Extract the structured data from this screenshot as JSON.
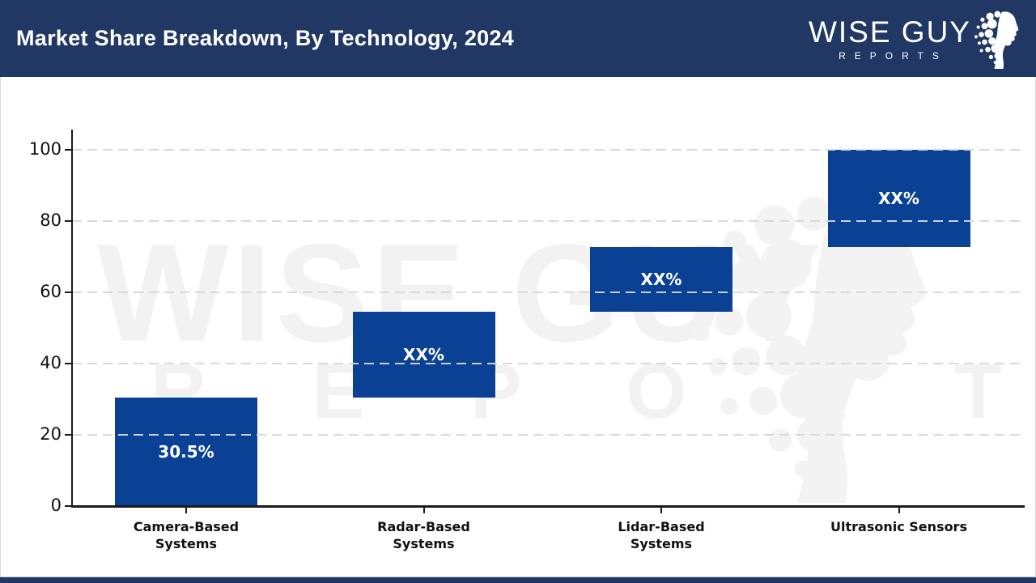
{
  "header": {
    "title": "Market Share Breakdown, By Technology, 2024",
    "logo": {
      "line1": "WISE GUY",
      "line2": "REPORTS"
    }
  },
  "watermark": {
    "line1": "WISE GUY",
    "line2": "R E P O R T S"
  },
  "chart_data": {
    "type": "bar",
    "subtype": "waterfall (floating stacked segments)",
    "title": "Market Share Breakdown, By Technology, 2024",
    "categories": [
      "Camera-Based Systems",
      "Radar-Based Systems",
      "Lidar-Based Systems",
      "Ultrasonic Sensors"
    ],
    "category_lines": [
      [
        "Camera-Based",
        "Systems"
      ],
      [
        "Radar-Based",
        "Systems"
      ],
      [
        "Lidar-Based",
        "Systems"
      ],
      [
        "Ultrasonic Sensors"
      ]
    ],
    "segments": [
      {
        "category": "Camera-Based Systems",
        "start": 0,
        "end": 30.5,
        "label": "30.5%"
      },
      {
        "category": "Radar-Based Systems",
        "start": 30.5,
        "end": 54.5,
        "label": "XX%"
      },
      {
        "category": "Lidar-Based Systems",
        "start": 54.5,
        "end": 72.7,
        "label": "XX%"
      },
      {
        "category": "Ultrasonic Sensors",
        "start": 72.7,
        "end": 100,
        "label": "XX%"
      }
    ],
    "xlabel": "",
    "ylabel": "",
    "ylim": [
      0,
      100
    ],
    "yticks": [
      0,
      20,
      40,
      60,
      80,
      100
    ],
    "grid": "horizontal dashed",
    "legend": "none",
    "colors": {
      "bar": "#0A4194",
      "header_navy": "#213865",
      "grid": "#D7D7D7",
      "axis": "#1A1A1A",
      "watermark": "#F2F2F2",
      "value_label": "#FFFFFF",
      "tick_text": "#111111"
    }
  }
}
